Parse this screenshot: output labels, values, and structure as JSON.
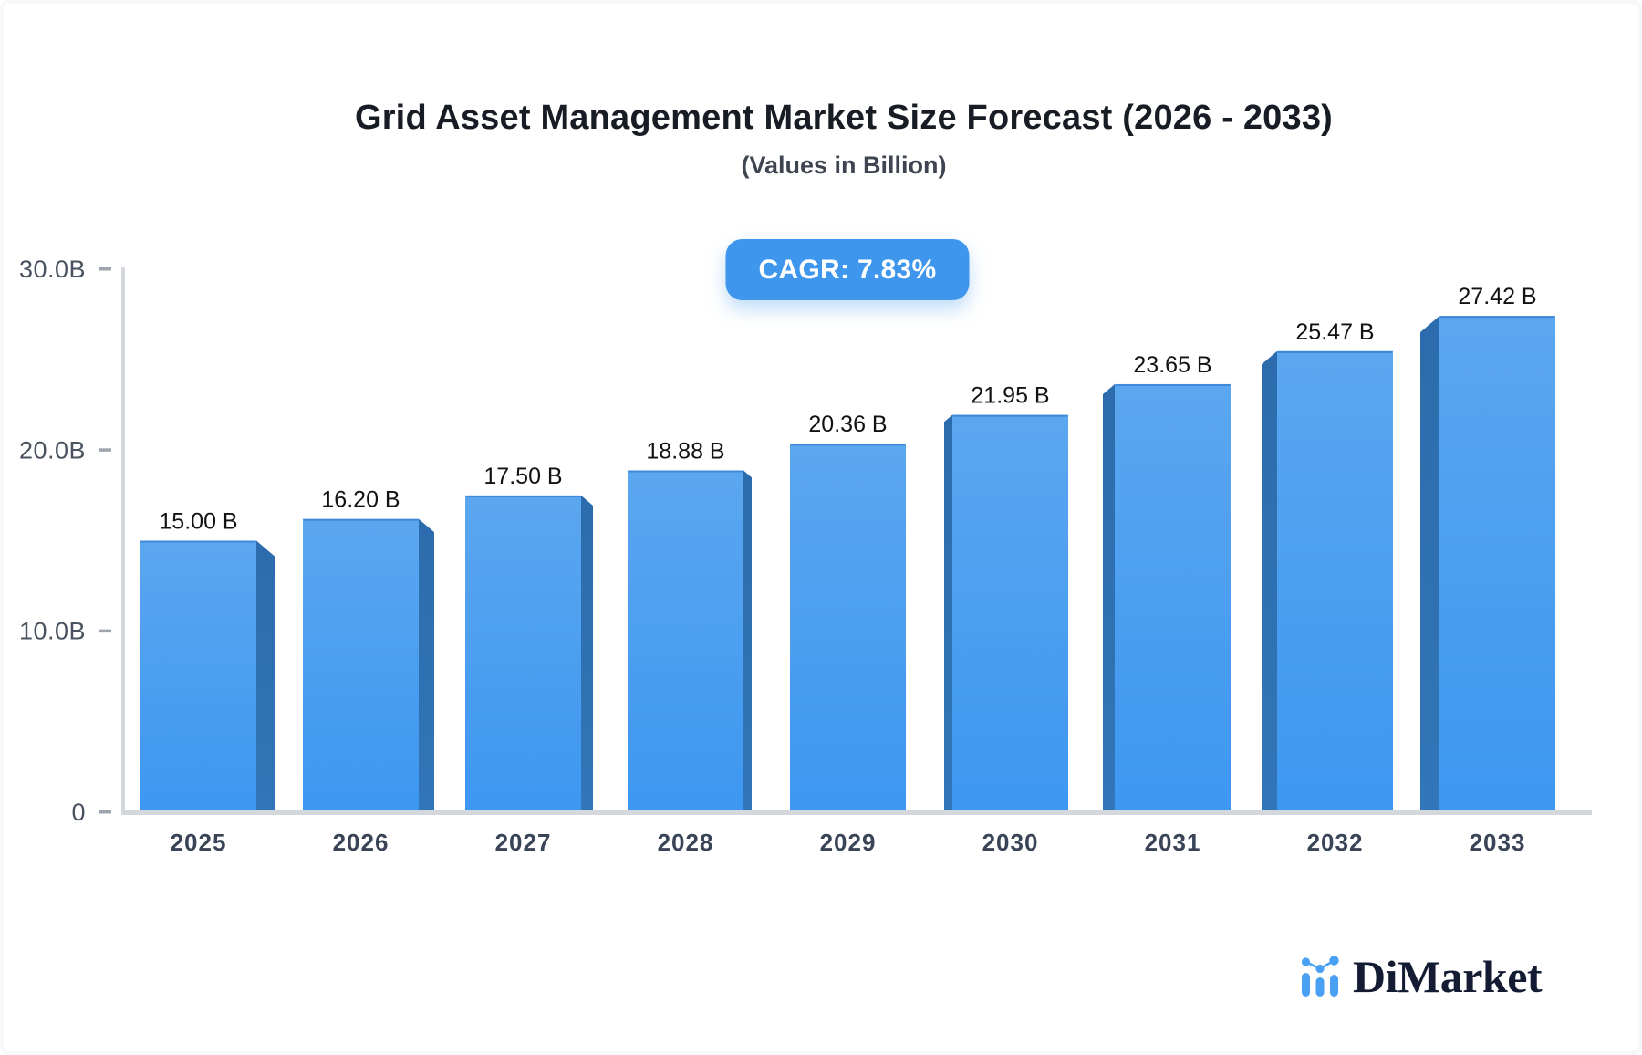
{
  "header": {
    "title": "Grid Asset Management Market Size Forecast (2026 - 2033)",
    "subtitle": "(Values in Billion)",
    "cagr_label": "CAGR: 7.83%"
  },
  "chart_data": {
    "type": "bar",
    "title": "Grid Asset Management Market Size Forecast (2026 - 2033)",
    "subtitle": "(Values in Billion)",
    "categories": [
      "2025",
      "2026",
      "2027",
      "2028",
      "2029",
      "2030",
      "2031",
      "2032",
      "2033"
    ],
    "values": [
      15.0,
      16.2,
      17.5,
      18.88,
      20.36,
      21.95,
      23.65,
      25.47,
      27.42
    ],
    "value_labels": [
      "15.00 B",
      "16.20 B",
      "17.50 B",
      "18.88 B",
      "20.36 B",
      "21.95 B",
      "23.65 B",
      "25.47 B",
      "27.42 B"
    ],
    "annotations": [
      "CAGR: 7.83%"
    ],
    "y_axis": {
      "min": 0,
      "max": 30,
      "ticks": [
        {
          "value": 30,
          "label": "30.0B"
        },
        {
          "value": 20,
          "label": "20.0B"
        },
        {
          "value": 10,
          "label": "10.0B"
        },
        {
          "value": 0,
          "label": "0"
        }
      ]
    },
    "grid": false,
    "legend": false,
    "bar_style": "3d-perspective"
  },
  "colors": {
    "badge_bg": "#3E96ED",
    "bar_face_top": "#5BA6EF",
    "bar_face_bottom": "#3D97F1",
    "bar_side_top": "#2C6CAD",
    "bar_side_bottom": "#3176B8",
    "bar_top_edge": "#3A85D5",
    "axis_line": "#D4D7DC",
    "tick": "#9FA5AE",
    "logo_icon": "#4AA0F2",
    "logo_text": "#131C33"
  },
  "logo": {
    "name": "DiMarket"
  }
}
